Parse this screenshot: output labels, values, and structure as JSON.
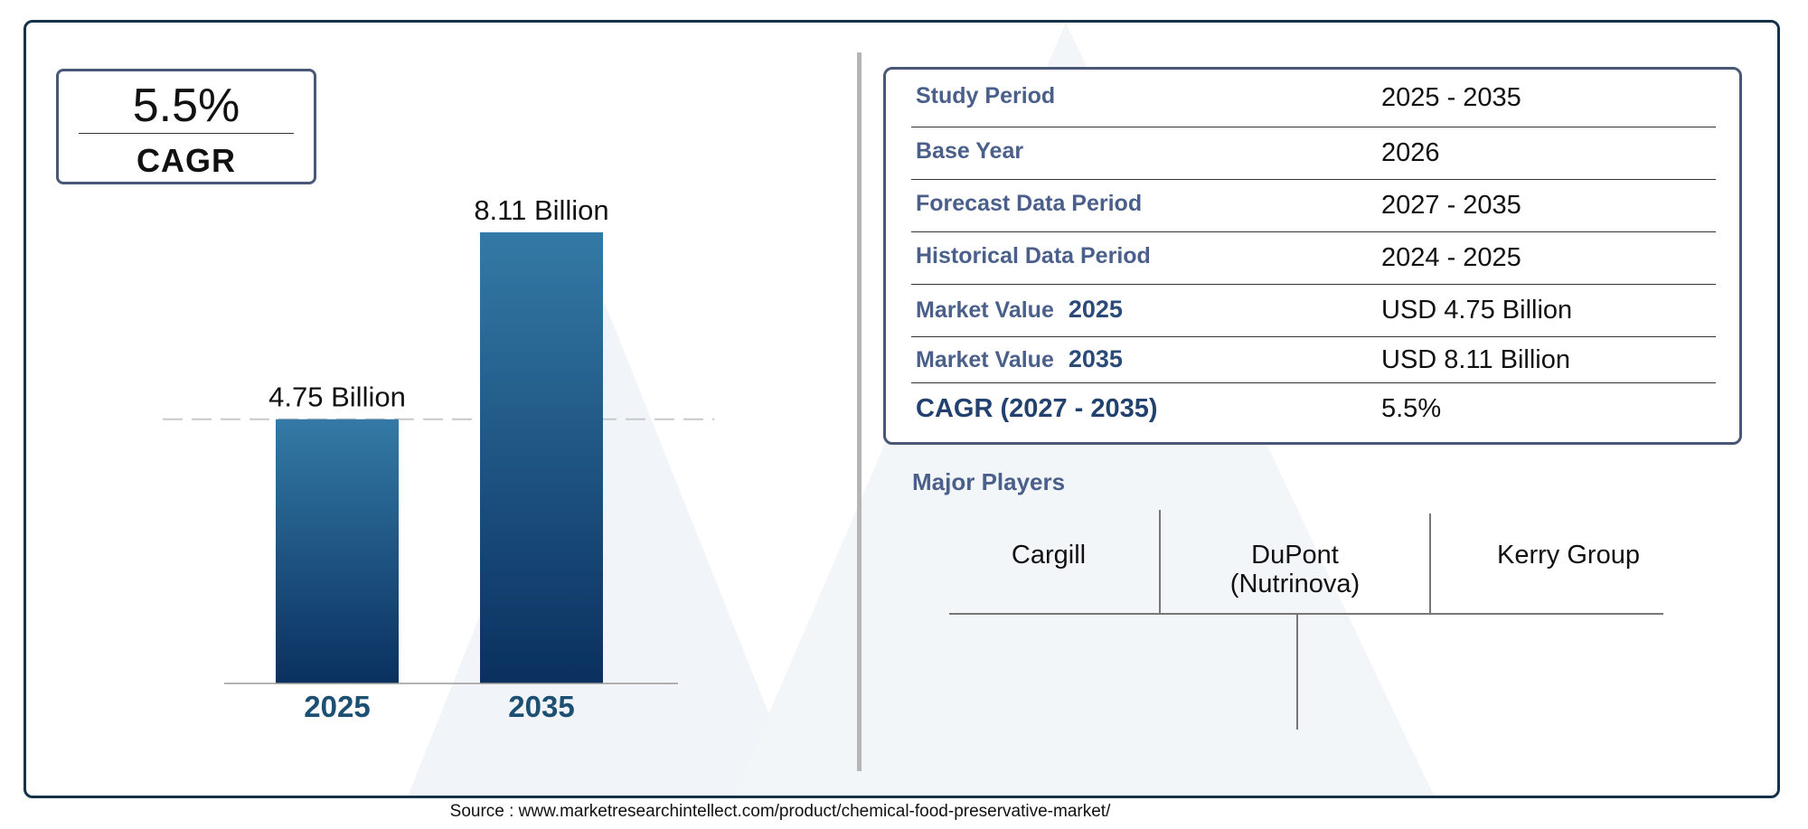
{
  "cagr_box": {
    "value": "5.5%",
    "label": "CAGR"
  },
  "chart_data": {
    "type": "bar",
    "categories": [
      "2025",
      "2035"
    ],
    "values": [
      4.75,
      8.11
    ],
    "data_labels": [
      "4.75 Billion",
      "8.11 Billion"
    ],
    "title": "",
    "xlabel": "",
    "ylabel": "",
    "ylim": [
      0,
      8.11
    ],
    "grid": false,
    "legend": "none",
    "reference_line": {
      "value": 4.75,
      "style": "dashed"
    },
    "colors": {
      "bar_top": "#347aa6",
      "bar_bottom": "#0a305f",
      "tick_label": "#1d4f72"
    }
  },
  "info_table": {
    "rows": [
      {
        "label": "Study Period",
        "year": "",
        "value": "2025 - 2035"
      },
      {
        "label": "Base Year",
        "year": "",
        "value": "2026"
      },
      {
        "label": "Forecast Data Period",
        "year": "",
        "value": "2027 - 2035"
      },
      {
        "label": "Historical Data Period",
        "year": "",
        "value": "2024 - 2025"
      },
      {
        "label": "Market Value",
        "year": "2025",
        "value": "USD 4.75 Billion"
      },
      {
        "label": "Market Value",
        "year": "2035",
        "value": "USD 8.11 Billion"
      },
      {
        "label": "CAGR (2027 - 2035)",
        "year": "",
        "value": "5.5%"
      }
    ]
  },
  "major_players": {
    "title": "Major Players",
    "players": [
      "Cargill",
      "DuPont\n(Nutrinova)",
      "Kerry Group"
    ]
  },
  "source": "Source : www.marketresearchintellect.com/product/chemical-food-preservative-market/"
}
